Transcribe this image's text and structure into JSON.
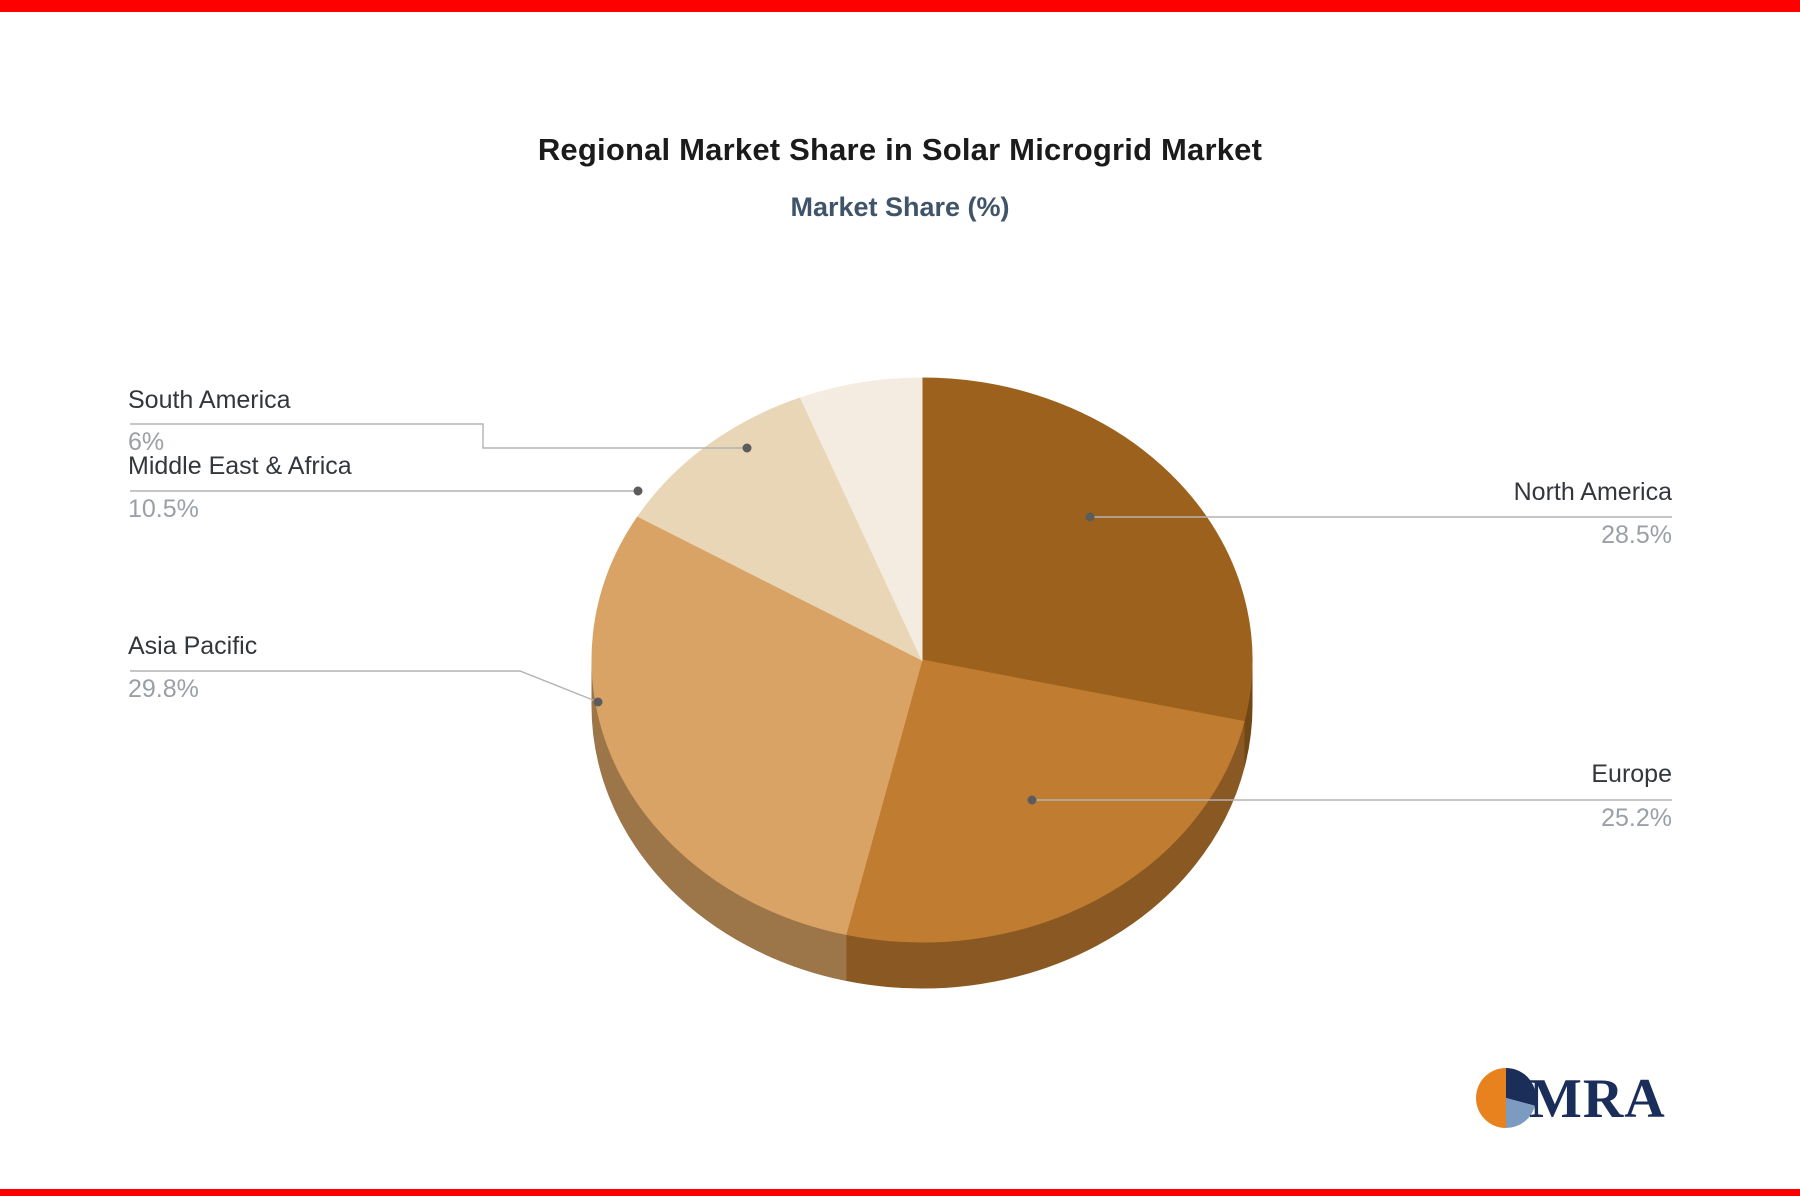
{
  "page": {
    "background_color": "#ffffff",
    "accent_bar_color": "#fe0000"
  },
  "chart_data": {
    "type": "pie",
    "style": "3d",
    "title": "Regional Market Share in Solar Microgrid Market",
    "subtitle": "Market Share (%)",
    "unit": "%",
    "labels": [
      "North America",
      "Europe",
      "Asia Pacific",
      "Middle East & Africa",
      "South America"
    ],
    "values": [
      28.5,
      25.2,
      29.8,
      10.5,
      6
    ],
    "display_values": [
      "28.5%",
      "25.2%",
      "29.8%",
      "10.5%",
      "6%"
    ],
    "colors": [
      "#9c621d",
      "#c07c31",
      "#d9a365",
      "#e9d6b6",
      "#f4ece0"
    ],
    "start_angle_deg": 0,
    "direction": "clockwise",
    "legend": "none",
    "total": 100
  },
  "logo": {
    "text": "MRA",
    "text_color": "#1b2e5a",
    "orange_color": "#e8821e",
    "navy_color": "#1b2e5a",
    "blue_color": "#7d9bc0"
  }
}
